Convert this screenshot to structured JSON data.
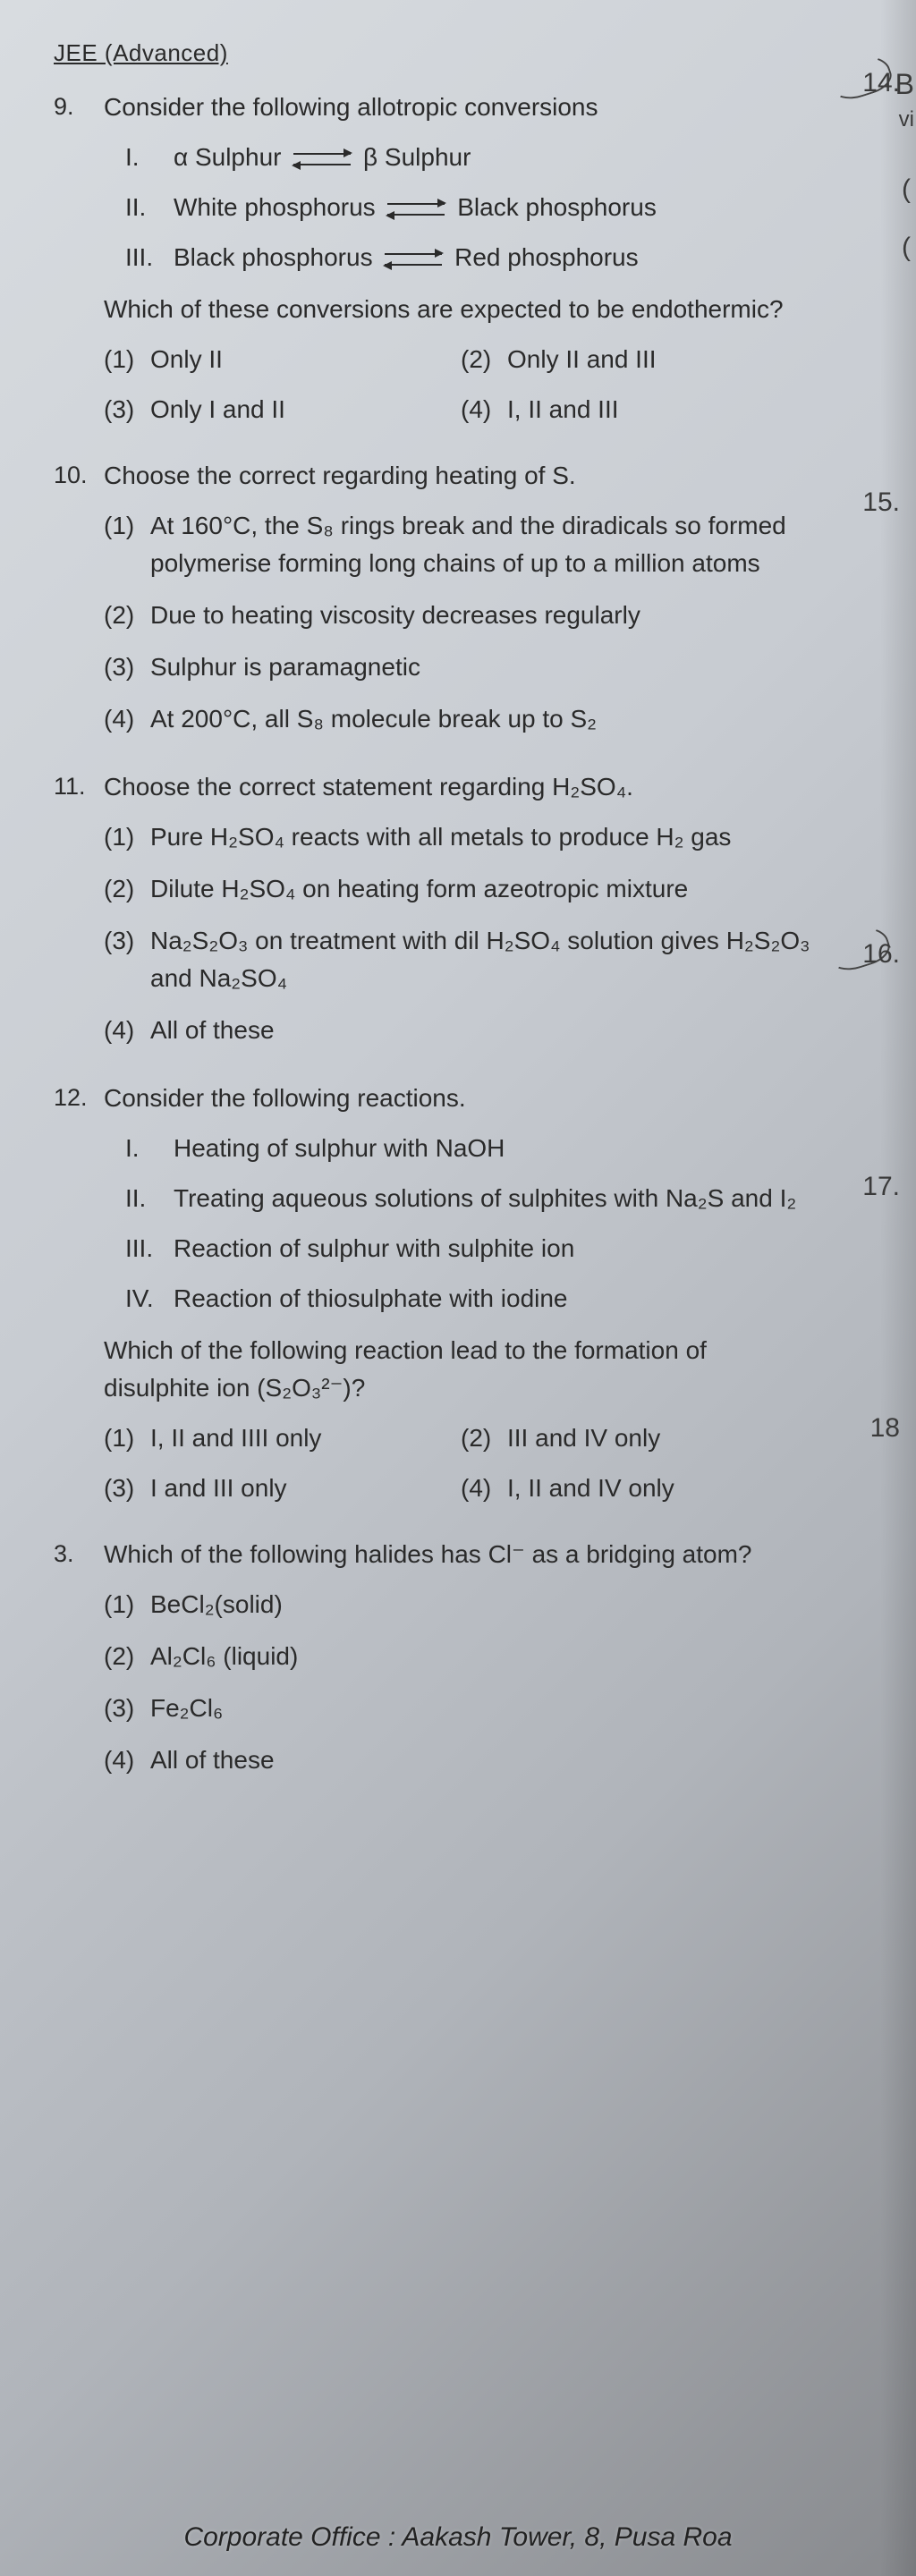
{
  "header": "JEE (Advanced)",
  "margin": {
    "m14": "14.",
    "mB": "B",
    "mvi": "vi",
    "p1": "(",
    "p2": "(",
    "m15": "15.",
    "m16": "16.",
    "m17": "17.",
    "m18": "18"
  },
  "q9": {
    "num": "9.",
    "stem": "Consider the following allotropic conversions",
    "i_rn": "I.",
    "i_l": "α Sulphur",
    "i_r": "β Sulphur",
    "ii_rn": "II.",
    "ii_l": "White phosphorus",
    "ii_r": "Black phosphorus",
    "iii_rn": "III.",
    "iii_l": "Black phosphorus",
    "iii_r": "Red phosphorus",
    "ask": "Which of these conversions are expected to be endothermic?",
    "o1n": "(1)",
    "o1": "Only II",
    "o2n": "(2)",
    "o2": "Only II and III",
    "o3n": "(3)",
    "o3": "Only I and II",
    "o4n": "(4)",
    "o4": "I, II and III"
  },
  "q10": {
    "num": "10.",
    "stem": "Choose the correct regarding heating of S.",
    "o1n": "(1)",
    "o1": "At 160°C, the S₈ rings break and the diradicals so formed polymerise forming long chains of up to a million atoms",
    "o2n": "(2)",
    "o2": "Due to heating viscosity decreases regularly",
    "o3n": "(3)",
    "o3": "Sulphur is paramagnetic",
    "o4n": "(4)",
    "o4": "At 200°C, all S₈ molecule break up to S₂"
  },
  "q11": {
    "num": "11.",
    "stem": "Choose the correct statement regarding H₂SO₄.",
    "o1n": "(1)",
    "o1": "Pure H₂SO₄ reacts with all metals to produce H₂ gas",
    "o2n": "(2)",
    "o2": "Dilute H₂SO₄ on heating form azeotropic mixture",
    "o3n": "(3)",
    "o3": "Na₂S₂O₃ on treatment with dil H₂SO₄ solution gives H₂S₂O₃ and Na₂SO₄",
    "o4n": "(4)",
    "o4": "All of these"
  },
  "q12": {
    "num": "12.",
    "stem": "Consider the following reactions.",
    "i_rn": "I.",
    "i": "Heating of sulphur with NaOH",
    "ii_rn": "II.",
    "ii": "Treating aqueous solutions of sulphites with Na₂S and I₂",
    "iii_rn": "III.",
    "iii": "Reaction of sulphur with sulphite ion",
    "iv_rn": "IV.",
    "iv": "Reaction of thiosulphate with iodine",
    "ask": "Which of the following reaction lead to the formation of disulphite ion (S₂O₃²⁻)?",
    "o1n": "(1)",
    "o1": "I, II and IIII only",
    "o2n": "(2)",
    "o2": "III and IV only",
    "o3n": "(3)",
    "o3": "I and III only",
    "o4n": "(4)",
    "o4": "I, II and IV only"
  },
  "q13": {
    "num": "3.",
    "stem": "Which of the following halides has Cl⁻ as a bridging atom?",
    "o1n": "(1)",
    "o1": "BeCl₂(solid)",
    "o2n": "(2)",
    "o2": "Al₂Cl₆ (liquid)",
    "o3n": "(3)",
    "o3": "Fe₂Cl₆",
    "o4n": "(4)",
    "o4": "All of these"
  },
  "footer": "Corporate Office : Aakash Tower, 8, Pusa Roa"
}
